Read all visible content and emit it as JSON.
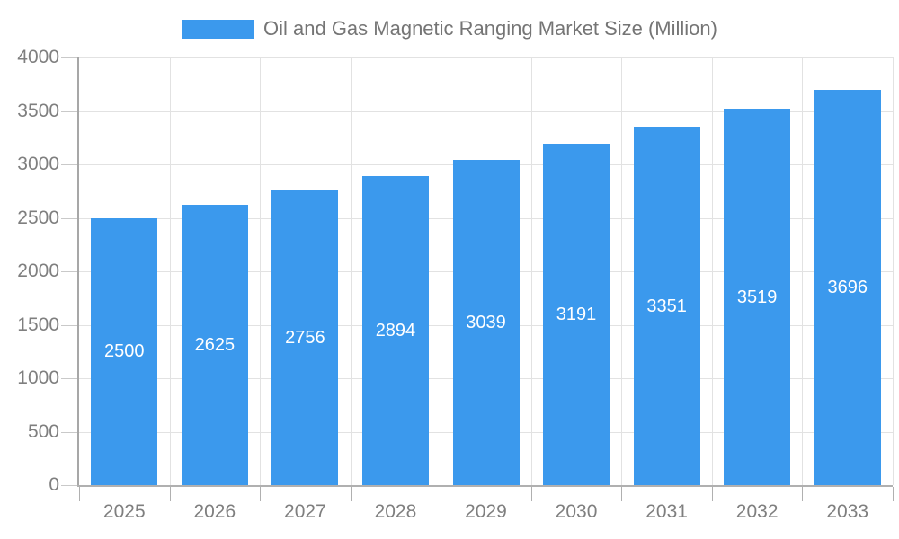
{
  "legend": {
    "label": "Oil and Gas Magnetic Ranging Market Size (Million)"
  },
  "chart_data": {
    "type": "bar",
    "title": "Oil and Gas Magnetic Ranging Market Size (Million)",
    "categories": [
      "2025",
      "2026",
      "2027",
      "2028",
      "2029",
      "2030",
      "2031",
      "2032",
      "2033"
    ],
    "values": [
      2500,
      2625,
      2756,
      2894,
      3039,
      3191,
      3351,
      3519,
      3696
    ],
    "series_name": "Oil and Gas Magnetic Ranging Market Size (Million)",
    "xlabel": "",
    "ylabel": "",
    "ylim": [
      0,
      4000
    ],
    "yticks": [
      0,
      500,
      1000,
      1500,
      2000,
      2500,
      3000,
      3500,
      4000
    ],
    "grid": true,
    "legend_position": "top",
    "bar_value_labels_inside": true,
    "colors": {
      "bar": "#3b99ed",
      "bar_label_text": "#ffffff",
      "axis_tick_text": "#7f7f7f",
      "legend_text": "#757575",
      "grid_line": "#e2e2e2",
      "axis_line_y": "#a7a7a7",
      "axis_line_x": "#b0b0b0",
      "tick_mark_y": "#c9c9c9",
      "tick_mark_x": "#b0b0b0",
      "background": "#ffffff"
    }
  }
}
